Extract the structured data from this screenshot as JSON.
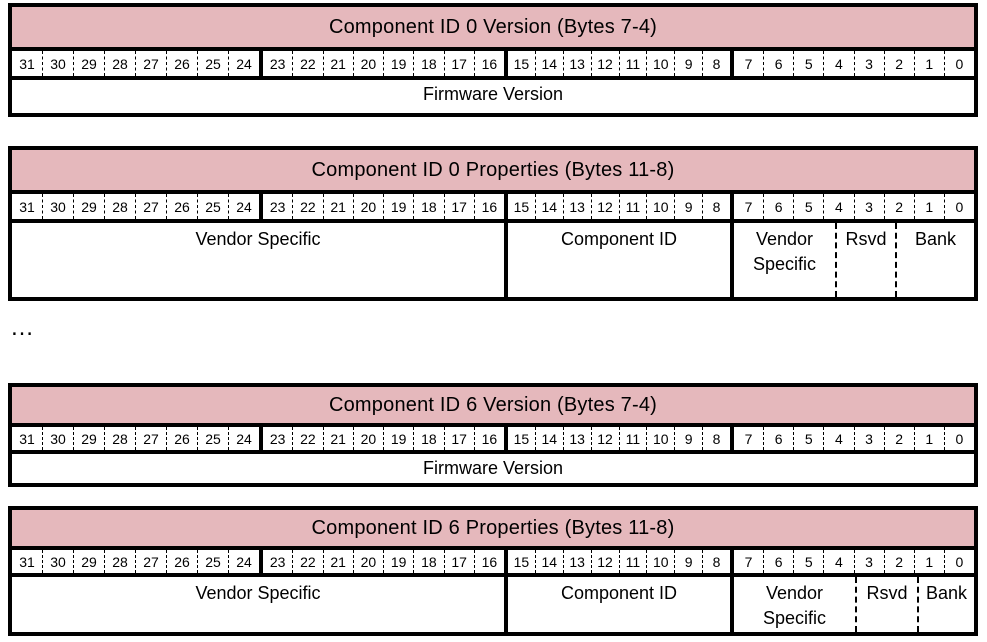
{
  "colors": {
    "header_bg": "#E5B8BC",
    "border": "#000000",
    "page_bg": "#FFFFFF"
  },
  "ellipsis": "…",
  "bit_groups": [
    [
      "31",
      "30",
      "29",
      "28",
      "27",
      "26",
      "25",
      "24"
    ],
    [
      "23",
      "22",
      "21",
      "20",
      "19",
      "18",
      "17",
      "16"
    ],
    [
      "15",
      "14",
      "13",
      "12",
      "11",
      "10",
      "9",
      "8"
    ],
    [
      "7",
      "6",
      "5",
      "4",
      "3",
      "2",
      "1",
      "0"
    ]
  ],
  "tables": [
    {
      "id": "component-id-0-version",
      "title": "Component ID 0 Version (Bytes 7-4)",
      "fields": {
        "firmware_version": "Firmware Version"
      }
    },
    {
      "id": "component-id-0-properties",
      "title": "Component ID 0 Properties (Bytes 11-8)",
      "fields": {
        "vendor_specific_high": "Vendor Specific",
        "component_id": "Component ID",
        "vendor_specific_low": "Vendor Specific",
        "rsvd": "Rsvd",
        "bank": "Bank"
      }
    },
    {
      "id": "component-id-6-version",
      "title": "Component ID 6 Version (Bytes 7-4)",
      "fields": {
        "firmware_version": "Firmware Version"
      }
    },
    {
      "id": "component-id-6-properties",
      "title": "Component ID 6 Properties (Bytes 11-8)",
      "fields": {
        "vendor_specific_high": "Vendor Specific",
        "component_id": "Component ID",
        "vendor_specific_low": "Vendor Specific",
        "rsvd": "Rsvd",
        "bank": "Bank"
      }
    }
  ]
}
